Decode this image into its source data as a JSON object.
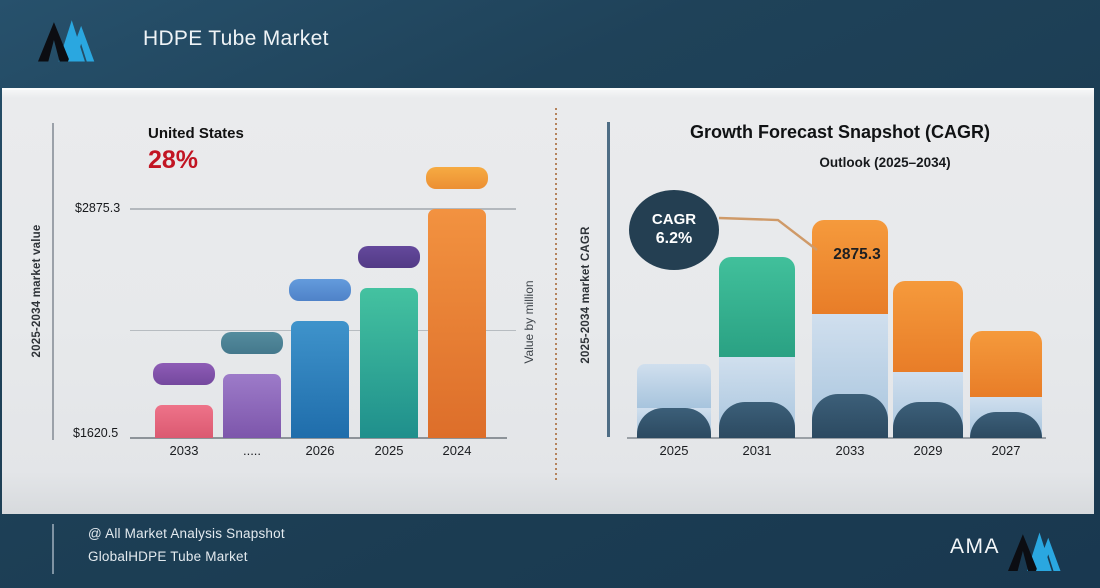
{
  "header": {
    "title": "HDPE Tube Market",
    "logo": "ama-mountains-logo"
  },
  "footer": {
    "line1": "@ All Market Analysis Snapshot",
    "line2": "GlobalHDPE Tube Market",
    "brand": "AMA",
    "logo": "ama-mountains-logo"
  },
  "colors": {
    "background_navy": "#1d3f55",
    "band_gray": "#e7e9eb",
    "highlight_red": "#c21523",
    "badge_navy": "#243f52",
    "callout_tan": "#cf9a68",
    "divider_dots": "#b5835c"
  },
  "chart_data": [
    {
      "type": "bar",
      "panel": "left",
      "title": "United States",
      "highlight": "28%",
      "ylabel": "2025-2034 market value",
      "ylabel_right": "Value by million",
      "yaxis": {
        "top_tick_label": "$2875.3",
        "top_tick_value": 2875.3,
        "base_tick_label": "$1620.5",
        "base_value": 1620.5
      },
      "grid": "two horizontal gridlines, baseline",
      "legend": "none",
      "categories": [
        "2033",
        ".....",
        "2026",
        "2025",
        "2024"
      ],
      "values": [
        1800,
        1970,
        2260,
        2440,
        2875.3
      ],
      "bar_gradients": [
        [
          "#ee7389",
          "#db5971"
        ],
        [
          "#9d7bc9",
          "#7d56ab"
        ],
        [
          "#3f93cb",
          "#1f6dab"
        ],
        [
          "#44c2a0",
          "#1f8f8c"
        ],
        [
          "#f29240",
          "#dd6e2a"
        ]
      ],
      "cap_gradients": [
        [
          "#8e5cb6",
          "#74489e"
        ],
        [
          "#548c9e",
          "#44788c"
        ],
        [
          "#639bdc",
          "#4f82c8"
        ],
        [
          "#64499c",
          "#523a86"
        ],
        [
          "#f6ab42",
          "#ec8f33"
        ]
      ]
    },
    {
      "type": "stacked-bar",
      "panel": "right",
      "title": "Growth Forecast Snapshot (CAGR)",
      "subtitle": "Outlook (2025–2034)",
      "ylabel": "2025-2034 market CAGR",
      "badge": {
        "label": "CAGR",
        "value": "6.2%"
      },
      "annotation": {
        "category": "2033",
        "text": "2875.3",
        "value": 2875.3
      },
      "legend": "none",
      "categories": [
        "2025",
        "2031",
        "2033",
        "2029",
        "2027"
      ],
      "values_relative": [
        0.34,
        0.83,
        1.0,
        0.72,
        0.49
      ],
      "bars": [
        {
          "label": "2025",
          "rel_height": 0.34,
          "segments": [
            {
              "color": "lightblue",
              "frac": 0.59
            },
            {
              "color": "navy",
              "frac": 0.41
            }
          ]
        },
        {
          "label": "2031",
          "rel_height": 0.83,
          "segments": [
            {
              "color": "teal",
              "frac": 0.55
            },
            {
              "color": "lightblue",
              "frac": 0.25
            },
            {
              "color": "navy",
              "frac": 0.2
            }
          ]
        },
        {
          "label": "2033",
          "rel_height": 1.0,
          "annotation": "2875.3",
          "segments": [
            {
              "color": "orange",
              "frac": 0.43
            },
            {
              "color": "lightblue",
              "frac": 0.37
            },
            {
              "color": "navy",
              "frac": 0.2
            }
          ]
        },
        {
          "label": "2029",
          "rel_height": 0.72,
          "segments": [
            {
              "color": "orange",
              "frac": 0.58
            },
            {
              "color": "lightblue",
              "frac": 0.19
            },
            {
              "color": "navy",
              "frac": 0.23
            }
          ]
        },
        {
          "label": "2027",
          "rel_height": 0.49,
          "segments": [
            {
              "color": "orange",
              "frac": 0.62
            },
            {
              "color": "lightblue",
              "frac": 0.14
            },
            {
              "color": "navy",
              "frac": 0.24
            }
          ]
        }
      ],
      "palette": {
        "orange": [
          "#f59a3c",
          "#e87d28"
        ],
        "teal": [
          "#41c09b",
          "#2aa183"
        ],
        "lightblue": [
          "#d0dfee",
          "#a7c4dd"
        ],
        "navy": [
          "#3c5f79",
          "#2c4a61"
        ]
      }
    }
  ]
}
